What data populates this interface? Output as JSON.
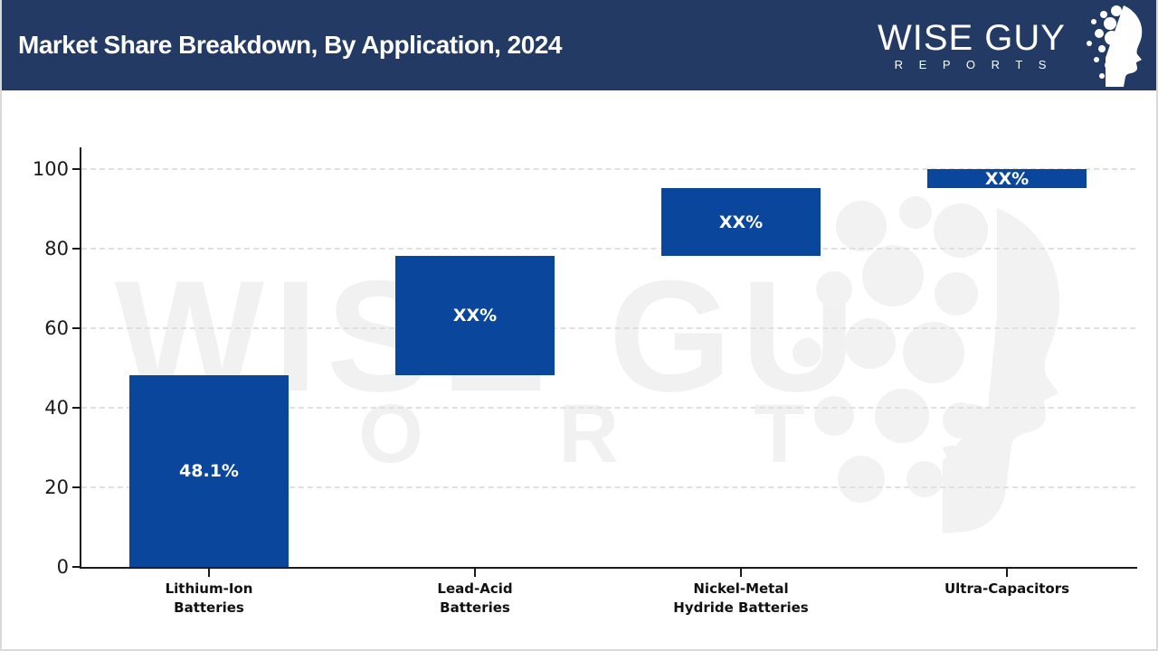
{
  "header": {
    "title": "Market Share Breakdown, By Application, 2024",
    "logo": {
      "line1": "WISE GUY",
      "line2": "R E P O R T S"
    },
    "bg_color": "#223a64"
  },
  "watermark": {
    "line1": "WISE GU",
    "line2": "P O R T S"
  },
  "chart_data": {
    "type": "bar",
    "subtype": "floating-waterfall",
    "title": "Market Share Breakdown, By Application, 2024",
    "categories": [
      "Lithium-Ion\nBatteries",
      "Lead-Acid\nBatteries",
      "Nickel-Metal\nHydride Batteries",
      "Ultra-Capacitors"
    ],
    "segments": [
      {
        "label": "48.1%",
        "start": 0,
        "end": 48.1
      },
      {
        "label": "XX%",
        "start": 48.1,
        "end": 78.2
      },
      {
        "label": "XX%",
        "start": 78.2,
        "end": 95.2
      },
      {
        "label": "XX%",
        "start": 95.2,
        "end": 100
      }
    ],
    "ylim": [
      0,
      100
    ],
    "yticks": [
      0,
      20,
      40,
      60,
      80,
      100
    ],
    "grid": "horizontal-dashed",
    "legend": "none",
    "bar_color": "#0a469b",
    "bar_label_color": "#ffffff",
    "axis_color": "#1a1a1a"
  }
}
